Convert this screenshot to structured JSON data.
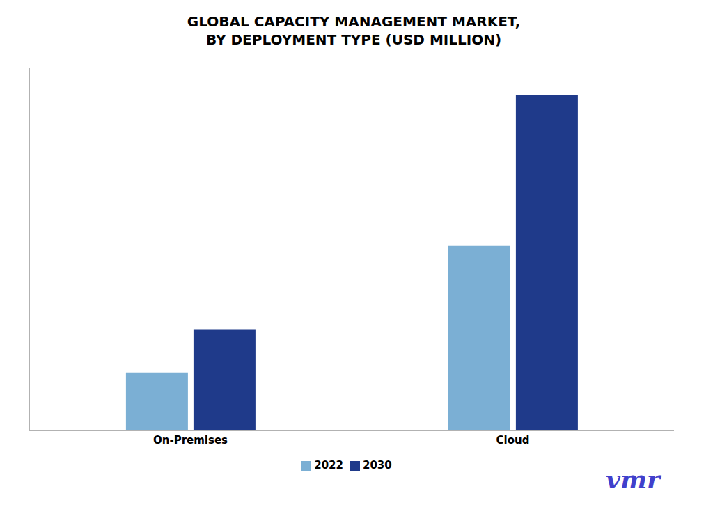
{
  "chart_data": {
    "type": "bar",
    "title": "GLOBAL CAPACITY MANAGEMENT MARKET,\nBY DEPLOYMENT TYPE (USD MILLION)",
    "categories": [
      "On-Premises",
      "Cloud"
    ],
    "series": [
      {
        "name": "2022",
        "color": "#7BAFD4",
        "values": [
          1.0,
          3.2
        ]
      },
      {
        "name": "2030",
        "color": "#1F3A8A",
        "values": [
          1.75,
          5.8
        ]
      }
    ],
    "ylim": [
      0,
      6.264
    ],
    "tick_labels": "x",
    "grid": false,
    "legend": "bottom",
    "annotations": [
      {
        "text": "vmr",
        "color": "#4040CC"
      }
    ]
  }
}
